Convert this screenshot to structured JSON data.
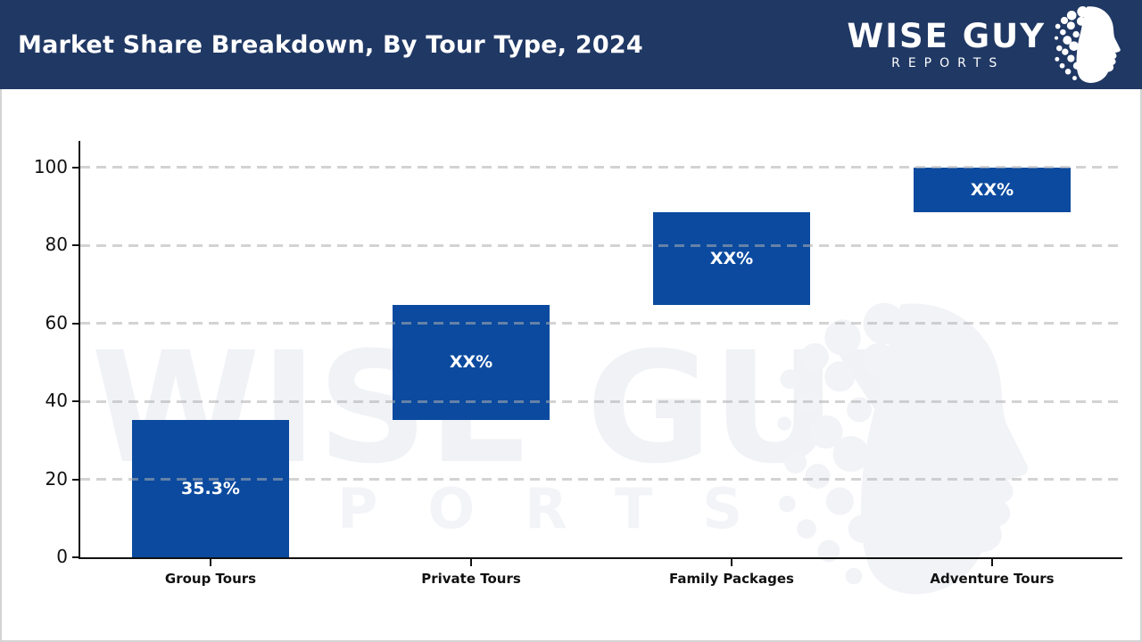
{
  "header": {
    "title": "Market Share Breakdown, By Tour Type, 2024",
    "background_color": "#203864",
    "logo": {
      "line1": "WISE GUY",
      "line2": "REPORTS"
    }
  },
  "watermark": {
    "line1": "WISE GUY",
    "line2": "REPORTS"
  },
  "chart_data": {
    "type": "bar",
    "variant": "floating-waterfall",
    "title": "Market Share Breakdown, By Tour Type, 2024",
    "categories": [
      "Group Tours",
      "Private Tours",
      "Family Packages",
      "Adventure Tours"
    ],
    "segments": [
      {
        "category": "Group Tours",
        "start": 0,
        "end": 35.3,
        "label": "35.3%"
      },
      {
        "category": "Private Tours",
        "start": 35.3,
        "end": 64.7,
        "label": "XX%"
      },
      {
        "category": "Family Packages",
        "start": 64.7,
        "end": 88.5,
        "label": "XX%"
      },
      {
        "category": "Adventure Tours",
        "start": 88.5,
        "end": 100,
        "label": "XX%"
      }
    ],
    "ylim": [
      0,
      100
    ],
    "yticks": [
      0,
      20,
      40,
      60,
      80,
      100
    ],
    "xlabel": "",
    "ylabel": "",
    "grid": "horizontal-dashed",
    "legend": "none",
    "bar_color": "#0B4A9F",
    "bar_label_color": "#ffffff",
    "grid_color": "#d9d9d9",
    "axis_color": "#111111"
  }
}
